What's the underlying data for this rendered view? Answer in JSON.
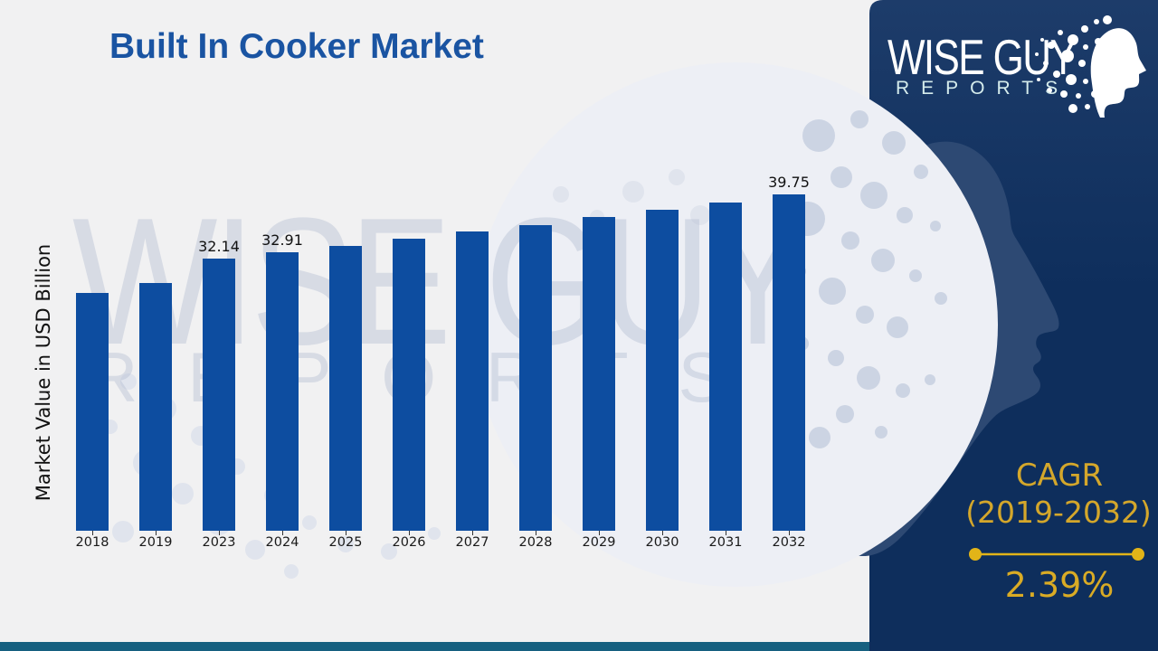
{
  "title": "Built In Cooker Market",
  "watermark": {
    "line1": "WISE GUY",
    "line2": "REPORTS"
  },
  "logo": {
    "line1": "WISE GUY",
    "line2": "REPORTS"
  },
  "cagr": {
    "label": "CAGR",
    "range": "(2019-2032)",
    "value": "2.39%"
  },
  "colors": {
    "bar": "#0d4da0",
    "title_blue": "#1a54a2",
    "navy_panel": "#0e2e5c",
    "navy_panel_top": "#1d3c6a",
    "slate_face": "#2d4973",
    "light_circle": "#edeff5",
    "gold": "#d4a72b",
    "gold_line": "#e2b418",
    "teal_strip": "#166080",
    "background": "#f1f1f2"
  },
  "chart_data": {
    "type": "bar",
    "title": "Built In Cooker Market",
    "xlabel": "",
    "ylabel": "Market Value in USD Billion",
    "categories": [
      "2018",
      "2019",
      "2023",
      "2024",
      "2025",
      "2026",
      "2027",
      "2028",
      "2029",
      "2030",
      "2031",
      "2032"
    ],
    "values": [
      28.1,
      29.25,
      32.14,
      32.91,
      33.7,
      34.5,
      35.33,
      36.17,
      37.04,
      37.92,
      38.83,
      39.75
    ],
    "bar_labels": [
      "",
      "",
      "32.14",
      "32.91",
      "",
      "",
      "",
      "",
      "",
      "",
      "",
      "39.75"
    ],
    "ylim": [
      0,
      43
    ],
    "grid": false,
    "legend": null,
    "bar_color": "#0d4da0"
  }
}
